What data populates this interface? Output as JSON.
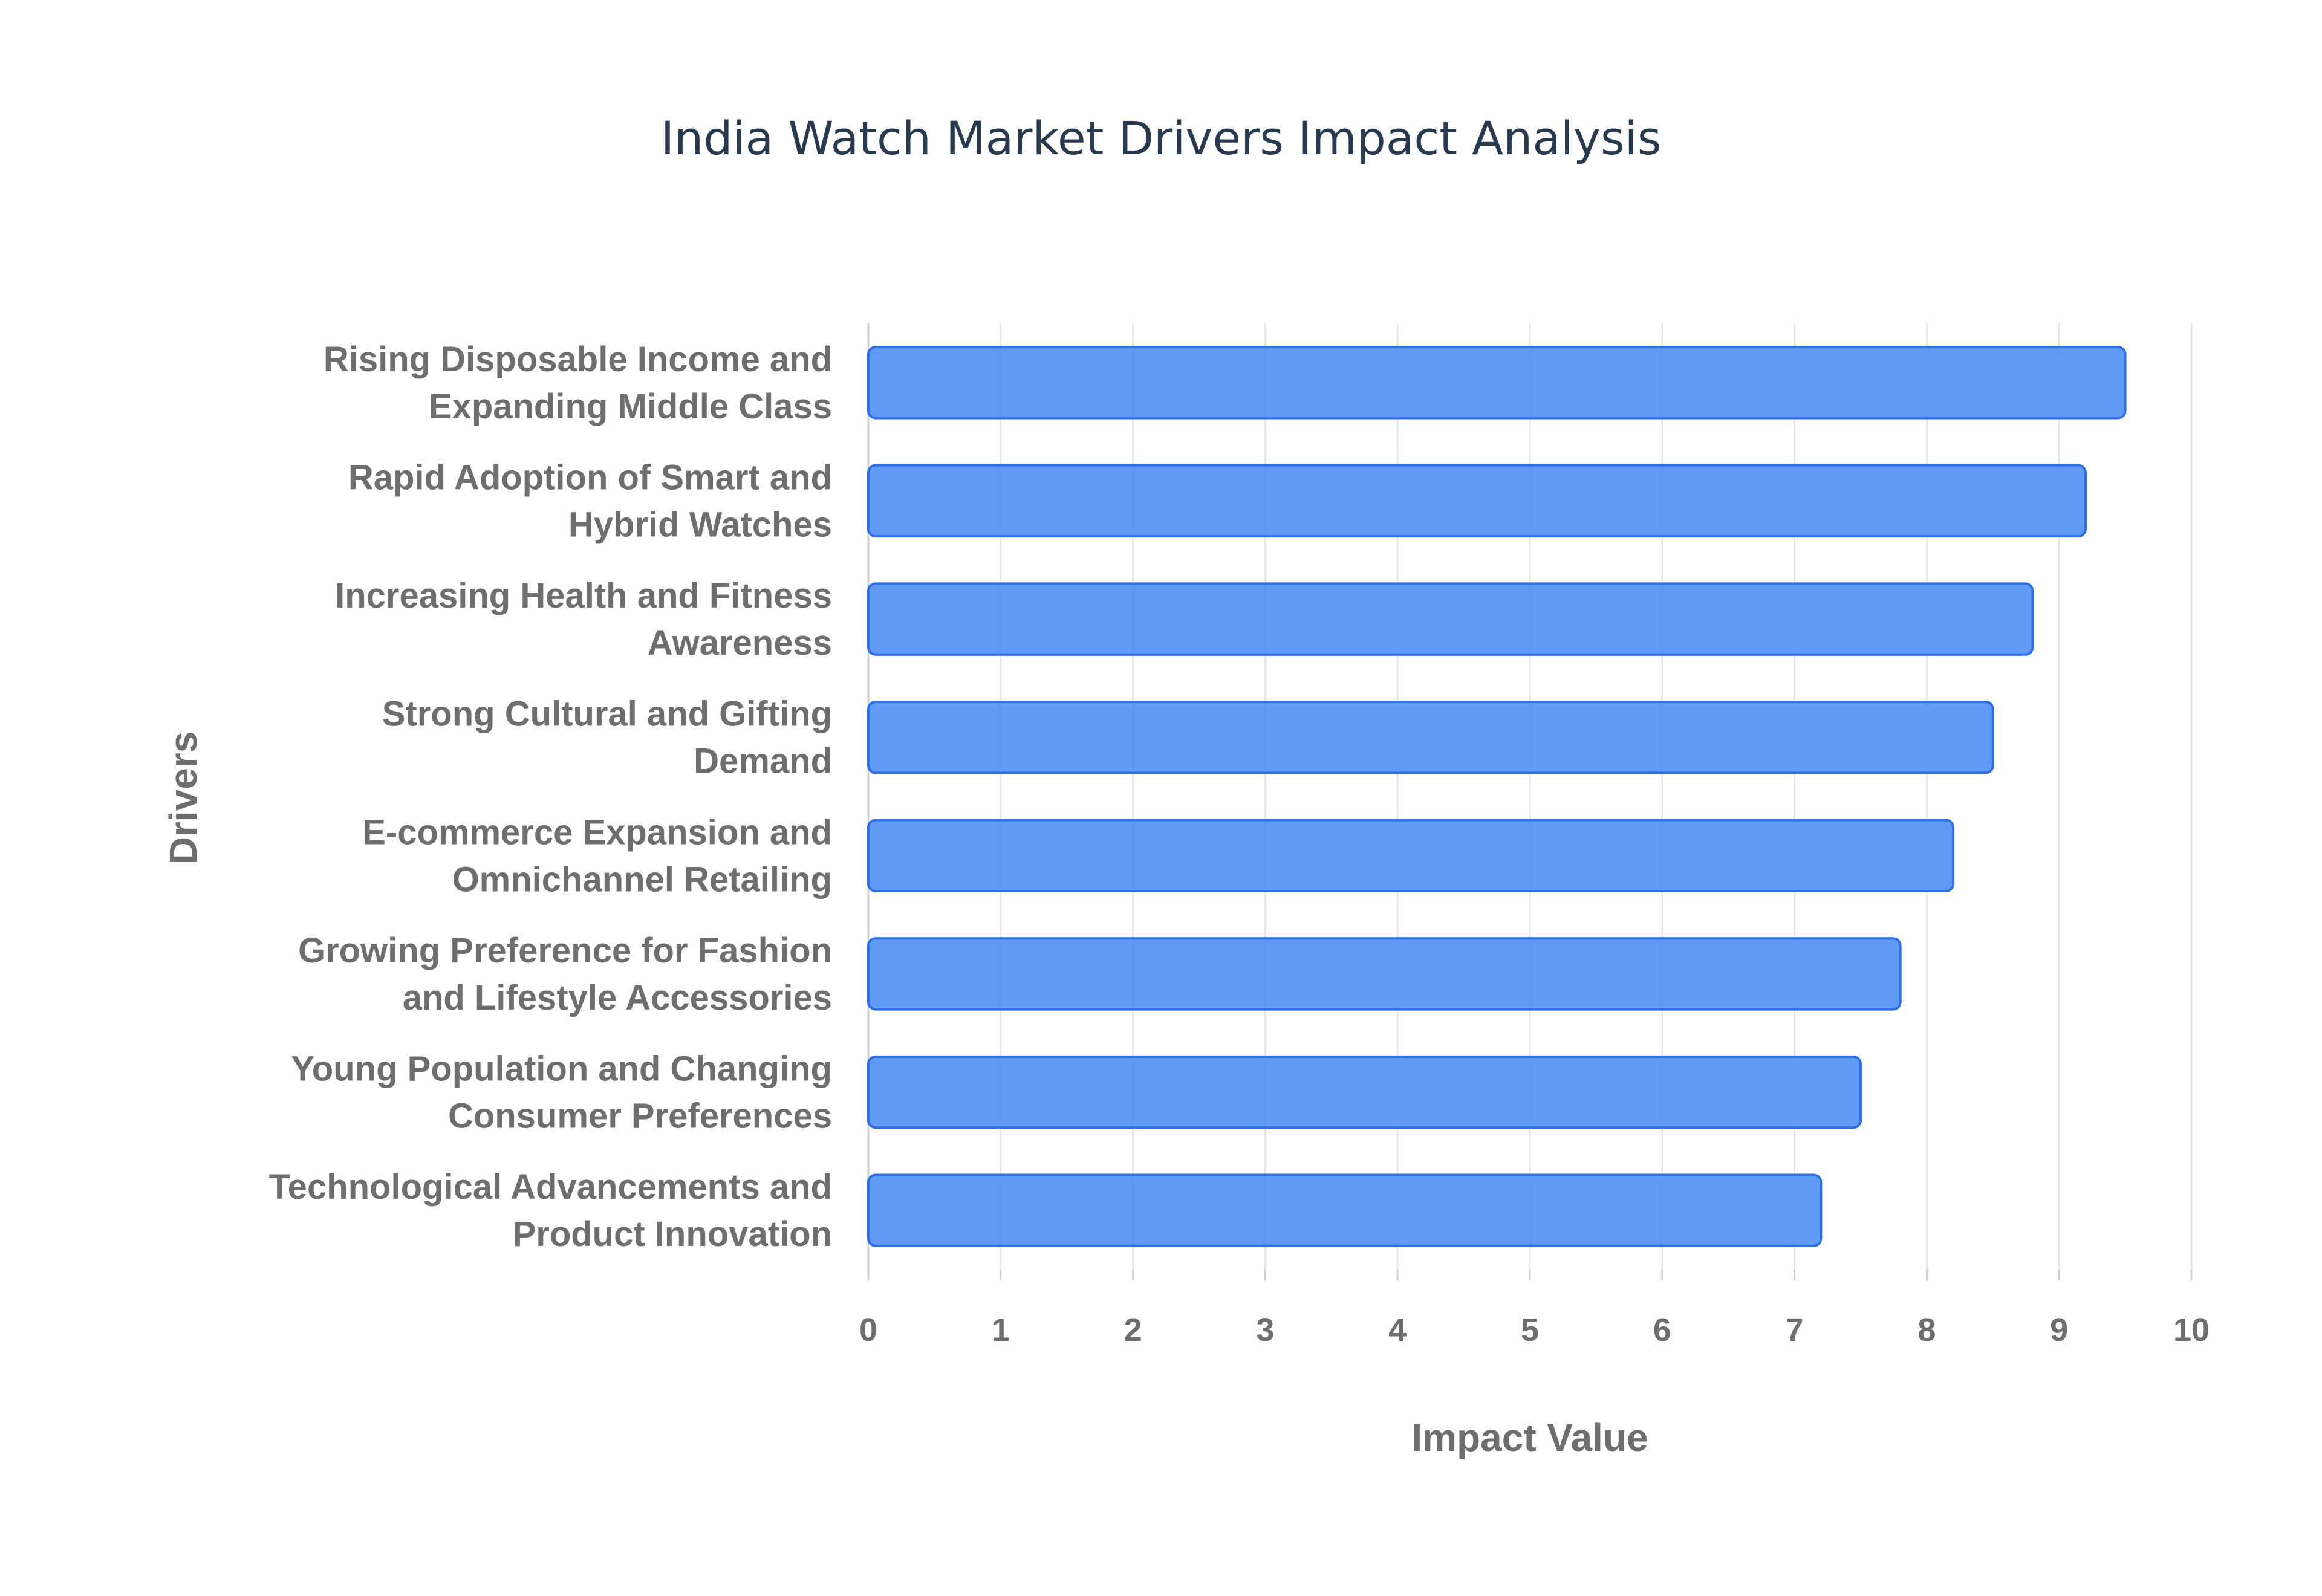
{
  "colors": {
    "bar_fill": "#4f8ff5",
    "bar_stroke": "#2f6fe4",
    "title": "#2a3a4e",
    "label": "#6e6e6e"
  },
  "chart_data": {
    "type": "bar",
    "orientation": "horizontal",
    "title": "India Watch Market Drivers Impact Analysis",
    "xlabel": "Impact Value",
    "ylabel": "Drivers",
    "xlim": [
      0,
      10
    ],
    "xticks": [
      0,
      1,
      2,
      3,
      4,
      5,
      6,
      7,
      8,
      9,
      10
    ],
    "grid": true,
    "legend": "none",
    "categories": [
      [
        "Rising Disposable Income and",
        "Expanding Middle Class"
      ],
      [
        "Rapid Adoption of Smart and",
        "Hybrid Watches"
      ],
      [
        "Increasing Health and Fitness",
        "Awareness"
      ],
      [
        "Strong Cultural and Gifting",
        "Demand"
      ],
      [
        "E-commerce Expansion and",
        "Omnichannel Retailing"
      ],
      [
        "Growing Preference for Fashion",
        "and Lifestyle Accessories"
      ],
      [
        "Young Population and Changing",
        "Consumer Preferences"
      ],
      [
        "Technological Advancements and",
        "Product Innovation"
      ]
    ],
    "values": [
      9.5,
      9.2,
      8.8,
      8.5,
      8.2,
      7.8,
      7.5,
      7.2
    ]
  }
}
